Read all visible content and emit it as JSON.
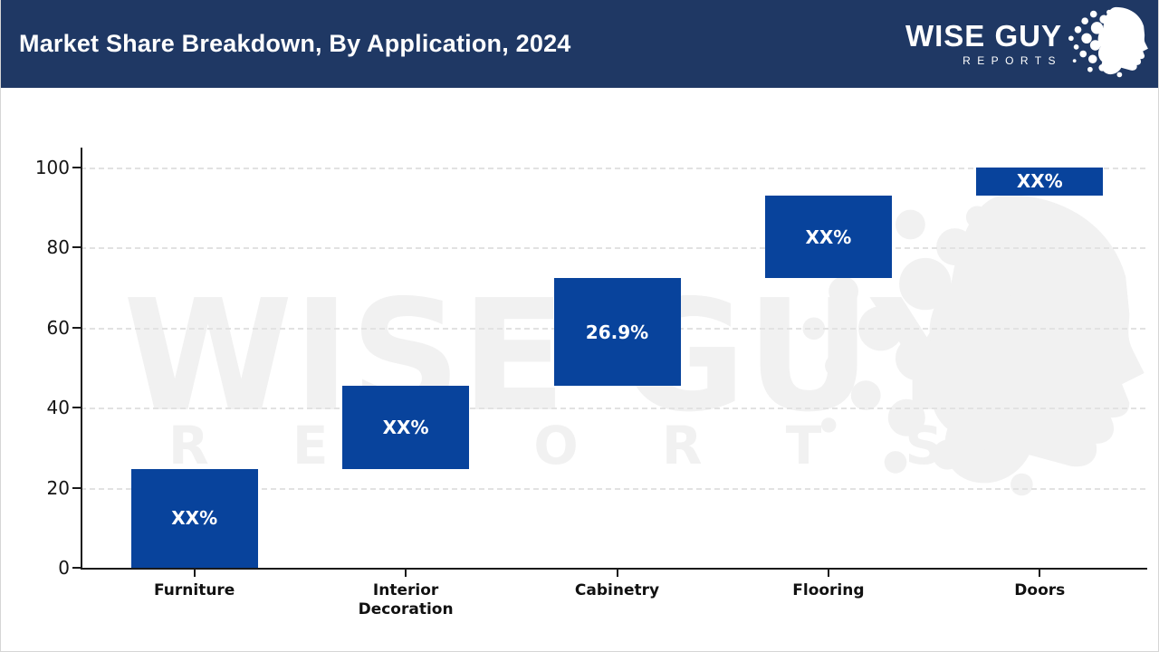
{
  "header": {
    "title": "Market Share Breakdown, By Application, 2024",
    "background_color": "#1f3864",
    "logo": {
      "name": "WISE GUY",
      "subtitle": "REPORTS"
    }
  },
  "watermark": {
    "line1": "WISE GUY",
    "line2": "R E P O R T S"
  },
  "chart_data": {
    "type": "bar",
    "subtype": "waterfall",
    "title": "Market Share Breakdown, By Application, 2024",
    "xlabel": "",
    "ylabel": "",
    "categories": [
      "Furniture",
      "Interior Decoration",
      "Cabinetry",
      "Flooring",
      "Doors"
    ],
    "segments": [
      {
        "category": "Furniture",
        "start": 0,
        "end": 24.7,
        "label": "XX%"
      },
      {
        "category": "Interior Decoration",
        "start": 24.7,
        "end": 45.4,
        "label": "XX%"
      },
      {
        "category": "Cabinetry",
        "start": 45.4,
        "end": 72.3,
        "label": "26.9%"
      },
      {
        "category": "Flooring",
        "start": 72.3,
        "end": 93.0,
        "label": "XX%"
      },
      {
        "category": "Doors",
        "start": 93.0,
        "end": 100,
        "label": "XX%"
      }
    ],
    "yticks": [
      0,
      20,
      40,
      60,
      80,
      100
    ],
    "ylim": [
      0,
      100
    ],
    "grid": "dashed-horizontal",
    "legend": "none",
    "bar_color": "#08439c",
    "bar_label_color": "#ffffff"
  }
}
